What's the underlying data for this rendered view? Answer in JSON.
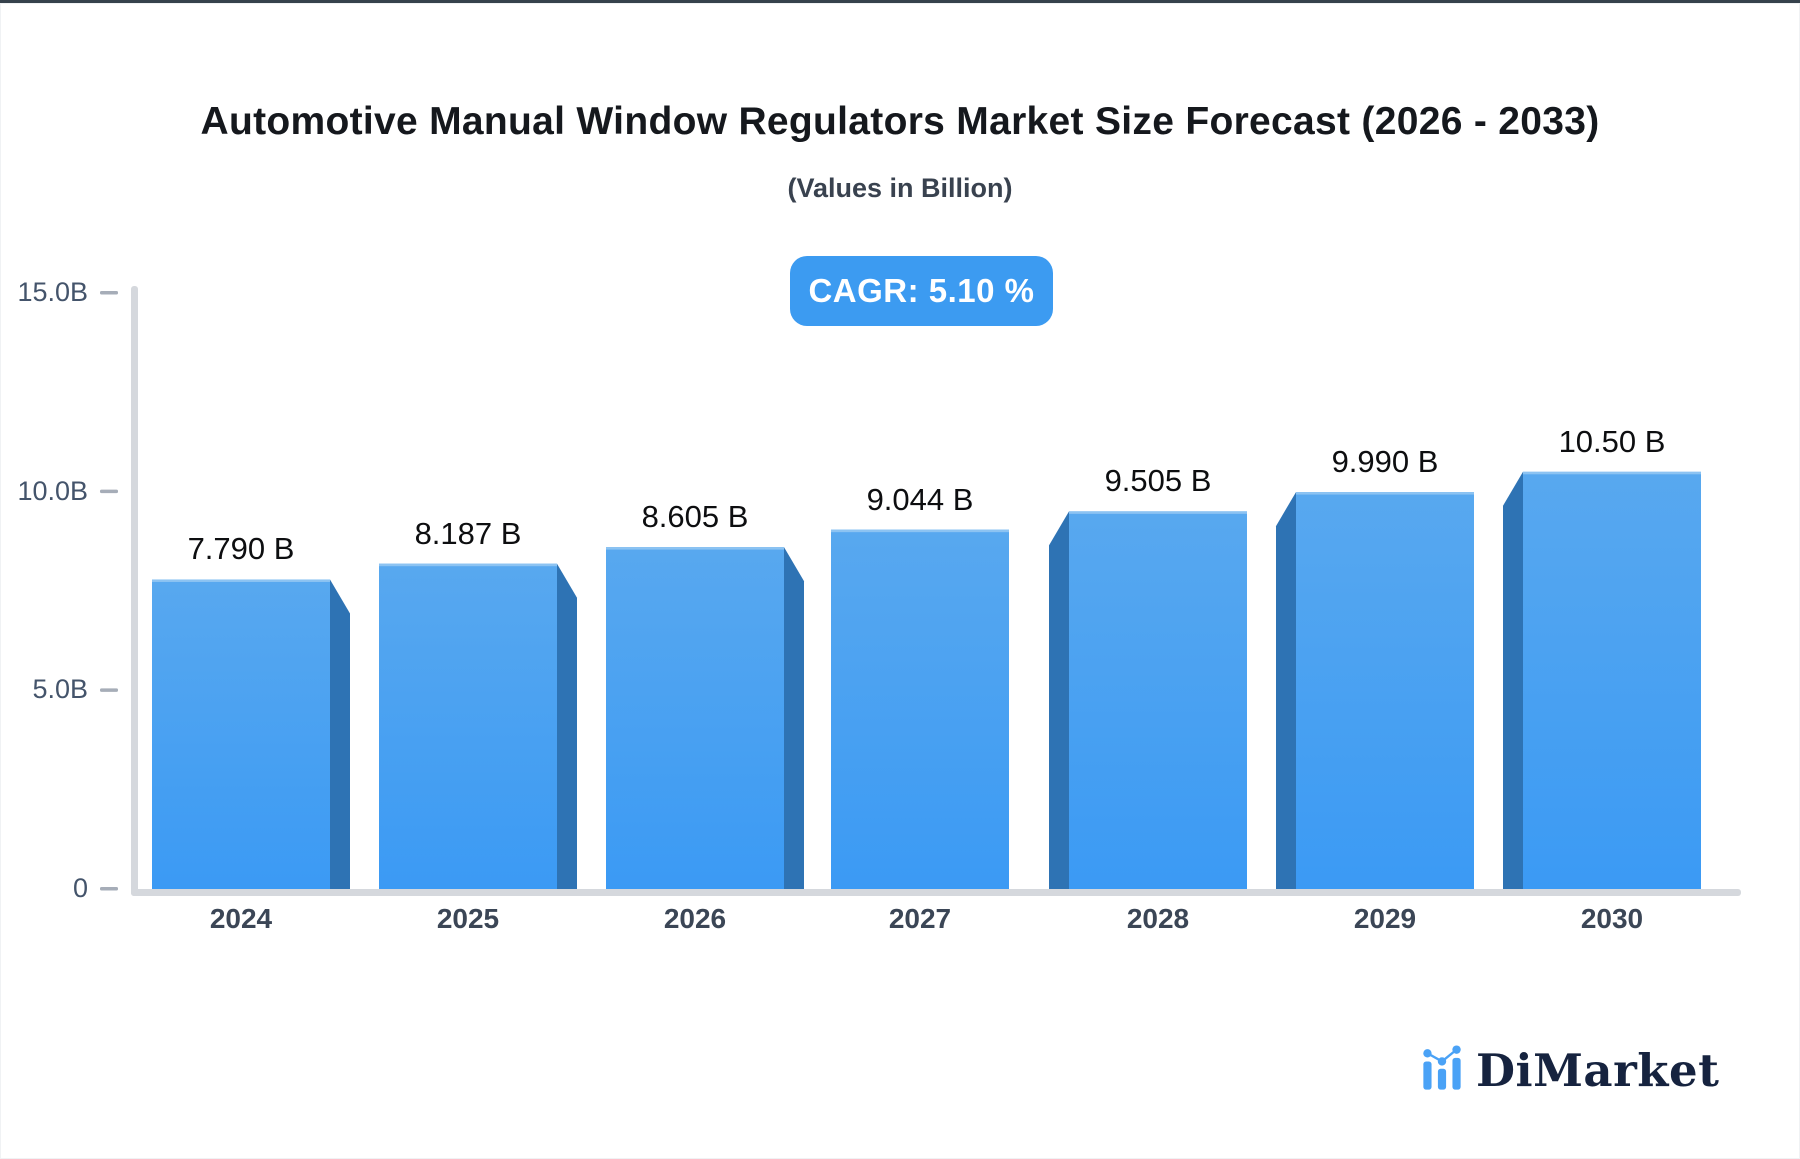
{
  "header": {
    "title": "Automotive Manual Window Regulators Market Size Forecast (2026 - 2033)",
    "subtitle": "(Values in Billion)",
    "cagr_label": "CAGR: 5.10 %"
  },
  "chart_data": {
    "type": "bar",
    "title": "Automotive Manual Window Regulators Market Size Forecast (2026 - 2033)",
    "subtitle": "(Values in Billion)",
    "cagr": "5.10 %",
    "categories": [
      "2024",
      "2025",
      "2026",
      "2027",
      "2028",
      "2029",
      "2030"
    ],
    "values": [
      7.79,
      8.187,
      8.605,
      9.044,
      9.505,
      9.99,
      10.5
    ],
    "value_labels": [
      "7.790 B",
      "8.187 B",
      "8.605 B",
      "9.044 B",
      "9.505 B",
      "9.990 B",
      "10.50 B"
    ],
    "unit": "Billion",
    "ylim": [
      0,
      15
    ],
    "yticks": [
      {
        "label": "15.0B",
        "value": 15
      },
      {
        "label": "10.0B",
        "value": 10
      },
      {
        "label": "5.0B",
        "value": 5
      },
      {
        "label": "0",
        "value": 0
      }
    ],
    "grid": "off",
    "legend": "none",
    "colors": {
      "bar_top": "#58a8ef",
      "bar_bottom": "#3b9af4",
      "bar_side": "#2e73b4",
      "bar_top_highlight": "#8cc3f2",
      "badge_bg": "#3c9bf1",
      "axis_line": "#d5d8dd",
      "tick_dash": "#a6adb8"
    }
  },
  "logo": {
    "brand": "DiMarket",
    "icon": "bar-chart-logo-icon"
  }
}
